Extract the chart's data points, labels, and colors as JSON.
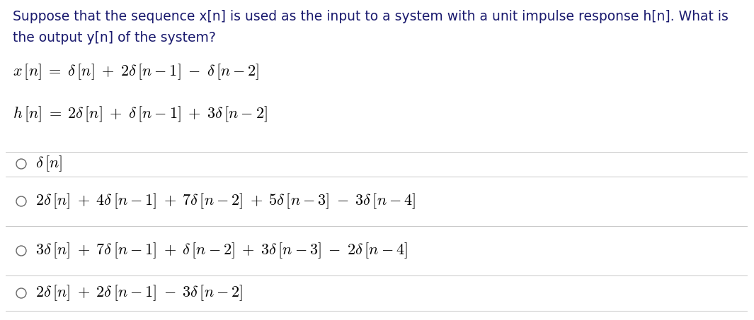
{
  "background_color": "#ffffff",
  "text_color": "#000000",
  "question_color": "#333333",
  "question_line1": "Suppose that the sequence x[n] is used as the input to a system with a unit impulse response h[n]. What is",
  "question_line2": "the output y[n] of the system?",
  "eq_x": "$x\\,[n]\\; =\\; \\delta\\,[n]\\; +\\; 2\\delta\\,[n-1]\\; -\\; \\delta\\,[n-2]$",
  "eq_h": "$h\\,[n]\\; =\\; 2\\delta\\,[n]\\; +\\; \\delta\\,[n-1]\\; +\\; 3\\delta\\,[n-2]$",
  "options": [
    "$\\delta\\,[n]$",
    "$2\\delta\\,[n]\\; +\\; 4\\delta\\,[n-1]\\; +\\; 7\\delta\\,[n-2]\\; +\\; 5\\delta\\,[n-3]\\; -\\; 3\\delta\\,[n-4]$",
    "$3\\delta\\,[n]\\; +\\; 7\\delta\\,[n-1]\\; +\\; \\delta\\,[n-2]\\; +\\; 3\\delta\\,[n-3]\\; -\\; 2\\delta\\,[n-4]$",
    "$2\\delta\\,[n]\\; +\\; 2\\delta\\,[n-1]\\; -\\; 3\\delta\\,[n-2]$"
  ],
  "divider_color": "#c8c8c8",
  "question_fontsize": 13.5,
  "eq_fontsize": 16,
  "option_fontsize": 16,
  "figsize": [
    10.65,
    4.53
  ],
  "dpi": 100
}
